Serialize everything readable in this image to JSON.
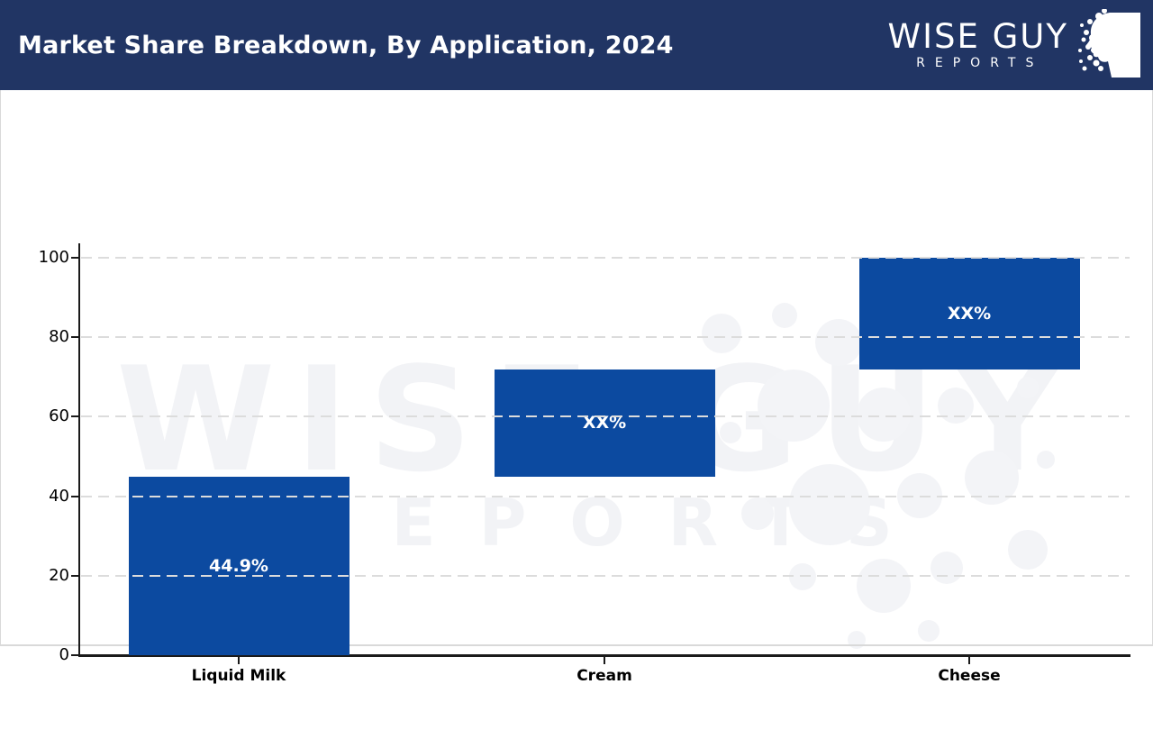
{
  "header": {
    "title": "Market Share Breakdown, By Application, 2024",
    "bg_color": "#213564",
    "logo": {
      "line1": "WISE GUY",
      "line2": "REPORTS"
    }
  },
  "watermark": {
    "line1": "WISE GUY",
    "line2": "REPORTS"
  },
  "chart_data": {
    "type": "bar",
    "subtype": "waterfall",
    "title": "Market Share Breakdown, By Application, 2024",
    "xlabel": "",
    "ylabel": "",
    "ylim": [
      0,
      100
    ],
    "yticks": [
      0,
      20,
      40,
      60,
      80,
      100
    ],
    "grid": "horizontal dashed",
    "legend": "none",
    "bar_color": "#0c4aa0",
    "label_color": "#ffffff",
    "categories": [
      "Liquid Milk",
      "Cream",
      "Cheese"
    ],
    "segments": [
      {
        "category": "Liquid Milk",
        "start": 0,
        "end": 44.9,
        "label": "44.9%",
        "estimated_value": 44.9
      },
      {
        "category": "Cream",
        "start": 44.9,
        "end": 71.9,
        "label": "XX%",
        "estimated_value": 27.0
      },
      {
        "category": "Cheese",
        "start": 71.9,
        "end": 100,
        "label": "XX%",
        "estimated_value": 28.1
      }
    ]
  }
}
